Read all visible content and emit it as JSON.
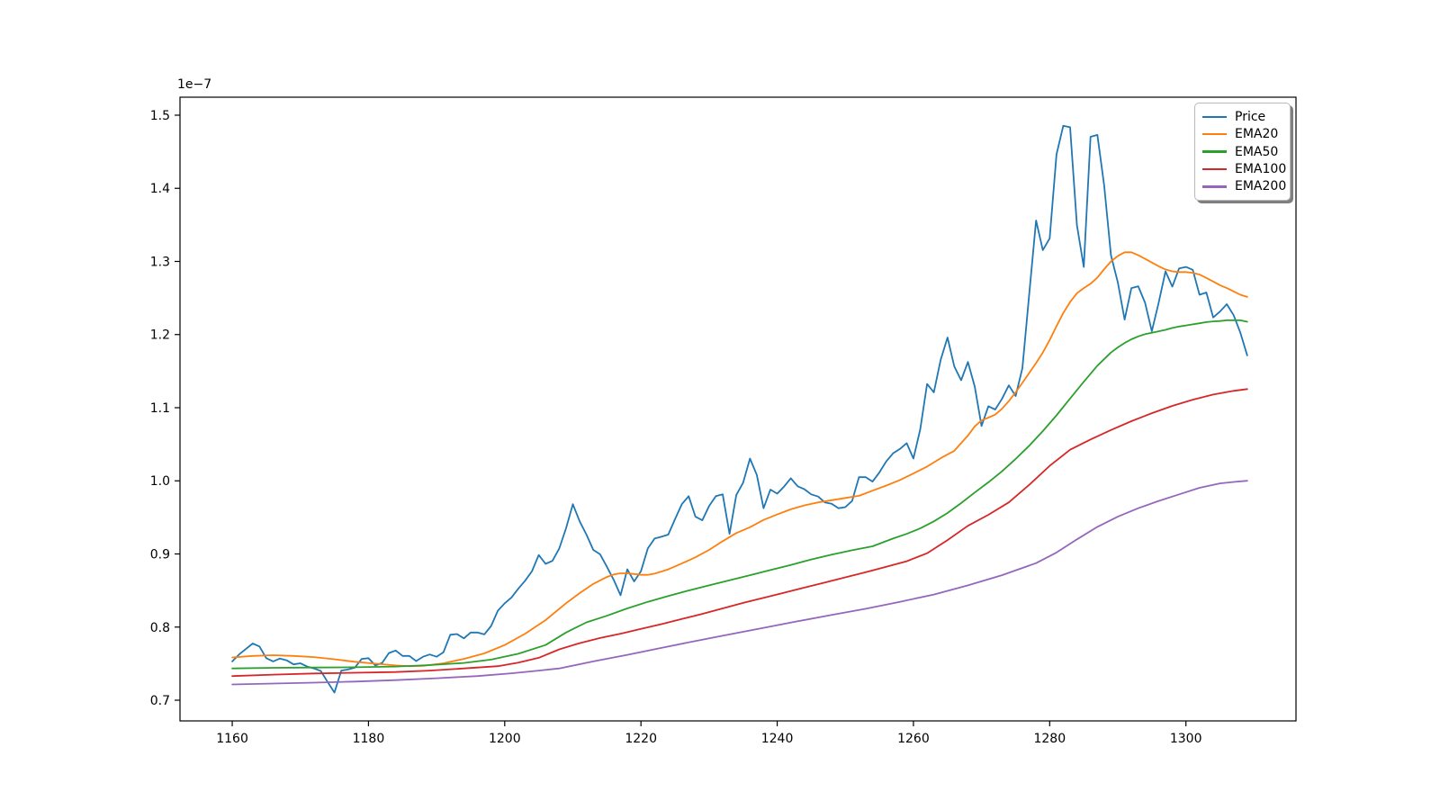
{
  "figure": {
    "background": "#ffffff",
    "spine_color": "#000000",
    "tick_color": "#000000"
  },
  "chart_data": {
    "type": "line",
    "title": "",
    "xlabel": "",
    "ylabel": "",
    "offset_text": "1e−7",
    "grid": false,
    "x_axis": {
      "range": [
        1152.33,
        1316.16
      ],
      "ticks": [
        1160,
        1180,
        1200,
        1220,
        1240,
        1260,
        1280,
        1300
      ],
      "tick_labels": [
        "1160",
        "1180",
        "1200",
        "1220",
        "1240",
        "1260",
        "1280",
        "1300"
      ]
    },
    "y_axis": {
      "range": [
        0.6717,
        1.5246
      ],
      "ticks": [
        0.7,
        0.8,
        0.9,
        1.0,
        1.1,
        1.2,
        1.3,
        1.4,
        1.5
      ],
      "tick_labels": [
        "0.7",
        "0.8",
        "0.9",
        "1.0",
        "1.1",
        "1.2",
        "1.3",
        "1.4",
        "1.5"
      ],
      "scale_note": "all values ×1e−7"
    },
    "legend": {
      "position": "upper right",
      "entries": [
        "Price",
        "EMA20",
        "EMA50",
        "EMA100",
        "EMA200"
      ]
    },
    "series": [
      {
        "name": "Price",
        "color": "#1f77b4",
        "x_start": 1160,
        "x_step": 1,
        "values": [
          0.753,
          0.7625,
          0.77,
          0.7775,
          0.7735,
          0.7575,
          0.753,
          0.757,
          0.7545,
          0.749,
          0.7505,
          0.746,
          0.7435,
          0.74,
          0.725,
          0.7105,
          0.7405,
          0.742,
          0.7445,
          0.7565,
          0.7575,
          0.7475,
          0.751,
          0.7645,
          0.768,
          0.7605,
          0.7605,
          0.7535,
          0.7595,
          0.7625,
          0.7595,
          0.7655,
          0.7895,
          0.7905,
          0.7845,
          0.7925,
          0.7925,
          0.79,
          0.8015,
          0.8225,
          0.8325,
          0.8405,
          0.8525,
          0.8635,
          0.8765,
          0.8985,
          0.8865,
          0.8905,
          0.9075,
          0.935,
          0.968,
          0.9445,
          0.9265,
          0.9055,
          0.8995,
          0.8825,
          0.8645,
          0.8435,
          0.879,
          0.8625,
          0.8765,
          0.9075,
          0.921,
          0.9235,
          0.9265,
          0.9475,
          0.968,
          0.979,
          0.951,
          0.946,
          0.9655,
          0.979,
          0.9815,
          0.9275,
          0.9805,
          0.9975,
          1.0305,
          1.008,
          0.9625,
          0.988,
          0.9825,
          0.992,
          1.0035,
          0.9925,
          0.9885,
          0.9815,
          0.9785,
          0.9705,
          0.9685,
          0.9625,
          0.964,
          0.9725,
          1.005,
          1.005,
          0.999,
          1.0115,
          1.0265,
          1.0375,
          1.0435,
          1.0515,
          1.0305,
          1.0705,
          1.1325,
          1.121,
          1.1655,
          1.196,
          1.1565,
          1.1375,
          1.1625,
          1.1285,
          1.075,
          1.102,
          1.0975,
          1.112,
          1.1305,
          1.116,
          1.154,
          1.2555,
          1.356,
          1.3155,
          1.3315,
          1.4465,
          1.4855,
          1.4835,
          1.3495,
          1.2925,
          1.4705,
          1.473,
          1.4035,
          1.3085,
          1.2715,
          1.2205,
          1.2635,
          1.266,
          1.2435,
          1.2045,
          1.2435,
          1.2865,
          1.2655,
          1.2905,
          1.2925,
          1.2885,
          1.2545,
          1.2575,
          1.2235,
          1.2315,
          1.2415,
          1.2265,
          1.2025,
          1.1715
        ]
      },
      {
        "name": "EMA20",
        "color": "#ff7f0e",
        "points": [
          [
            1160,
            0.7585
          ],
          [
            1163,
            0.7605
          ],
          [
            1166,
            0.7615
          ],
          [
            1169,
            0.7605
          ],
          [
            1172,
            0.759
          ],
          [
            1175,
            0.756
          ],
          [
            1178,
            0.7525
          ],
          [
            1181,
            0.75
          ],
          [
            1184,
            0.7475
          ],
          [
            1186,
            0.7465
          ],
          [
            1188,
            0.747
          ],
          [
            1191,
            0.7505
          ],
          [
            1194,
            0.7565
          ],
          [
            1197,
            0.764
          ],
          [
            1200,
            0.7755
          ],
          [
            1203,
            0.791
          ],
          [
            1206,
            0.8095
          ],
          [
            1209,
            0.8325
          ],
          [
            1211,
            0.8465
          ],
          [
            1213,
            0.859
          ],
          [
            1215,
            0.8685
          ],
          [
            1216,
            0.872
          ],
          [
            1217,
            0.8735
          ],
          [
            1218,
            0.8735
          ],
          [
            1219,
            0.8725
          ],
          [
            1220,
            0.8715
          ],
          [
            1221,
            0.8715
          ],
          [
            1222,
            0.873
          ],
          [
            1224,
            0.879
          ],
          [
            1226,
            0.887
          ],
          [
            1228,
            0.8955
          ],
          [
            1230,
            0.9055
          ],
          [
            1232,
            0.9175
          ],
          [
            1234,
            0.9285
          ],
          [
            1236,
            0.9365
          ],
          [
            1238,
            0.9465
          ],
          [
            1240,
            0.954
          ],
          [
            1242,
            0.961
          ],
          [
            1244,
            0.9665
          ],
          [
            1246,
            0.9705
          ],
          [
            1248,
            0.9735
          ],
          [
            1250,
            0.9765
          ],
          [
            1252,
            0.9795
          ],
          [
            1254,
            0.9865
          ],
          [
            1256,
            0.9935
          ],
          [
            1258,
            1.001
          ],
          [
            1260,
            1.01
          ],
          [
            1262,
            1.0195
          ],
          [
            1264,
            1.031
          ],
          [
            1266,
            1.041
          ],
          [
            1268,
            1.062
          ],
          [
            1269,
            1.0745
          ],
          [
            1270,
            1.0825
          ],
          [
            1271,
            1.0865
          ],
          [
            1272,
            1.0905
          ],
          [
            1273,
            1.0985
          ],
          [
            1274,
            1.109
          ],
          [
            1275,
            1.121
          ],
          [
            1276,
            1.134
          ],
          [
            1277,
            1.1475
          ],
          [
            1278,
            1.161
          ],
          [
            1279,
            1.1755
          ],
          [
            1280,
            1.1925
          ],
          [
            1281,
            1.2115
          ],
          [
            1282,
            1.2295
          ],
          [
            1283,
            1.2445
          ],
          [
            1284,
            1.2565
          ],
          [
            1285,
            1.2635
          ],
          [
            1286,
            1.2695
          ],
          [
            1287,
            1.278
          ],
          [
            1288,
            1.2895
          ],
          [
            1289,
            1.3
          ],
          [
            1290,
            1.3075
          ],
          [
            1291,
            1.3125
          ],
          [
            1292,
            1.3125
          ],
          [
            1293,
            1.3085
          ],
          [
            1294,
            1.3035
          ],
          [
            1295,
            1.2985
          ],
          [
            1296,
            1.2935
          ],
          [
            1297,
            1.289
          ],
          [
            1298,
            1.2865
          ],
          [
            1299,
            1.2855
          ],
          [
            1300,
            1.2855
          ],
          [
            1301,
            1.2845
          ],
          [
            1302,
            1.282
          ],
          [
            1303,
            1.2775
          ],
          [
            1304,
            1.2725
          ],
          [
            1305,
            1.2675
          ],
          [
            1306,
            1.2635
          ],
          [
            1307,
            1.259
          ],
          [
            1308,
            1.2545
          ],
          [
            1309,
            1.2515
          ]
        ]
      },
      {
        "name": "EMA50",
        "color": "#2ca02c",
        "points": [
          [
            1160,
            0.7435
          ],
          [
            1166,
            0.7443
          ],
          [
            1172,
            0.7447
          ],
          [
            1178,
            0.745
          ],
          [
            1184,
            0.746
          ],
          [
            1189,
            0.748
          ],
          [
            1194,
            0.751
          ],
          [
            1198,
            0.7555
          ],
          [
            1202,
            0.7635
          ],
          [
            1206,
            0.7755
          ],
          [
            1209,
            0.7925
          ],
          [
            1212,
            0.8065
          ],
          [
            1215,
            0.8155
          ],
          [
            1218,
            0.8255
          ],
          [
            1221,
            0.8345
          ],
          [
            1224,
            0.8425
          ],
          [
            1227,
            0.85
          ],
          [
            1230,
            0.857
          ],
          [
            1233,
            0.864
          ],
          [
            1236,
            0.871
          ],
          [
            1239,
            0.878
          ],
          [
            1242,
            0.885
          ],
          [
            1245,
            0.8925
          ],
          [
            1248,
            0.899
          ],
          [
            1251,
            0.905
          ],
          [
            1254,
            0.9105
          ],
          [
            1257,
            0.921
          ],
          [
            1259,
            0.9275
          ],
          [
            1261,
            0.935
          ],
          [
            1263,
            0.9445
          ],
          [
            1265,
            0.956
          ],
          [
            1267,
            0.9695
          ],
          [
            1269,
            0.984
          ],
          [
            1271,
            0.998
          ],
          [
            1273,
            1.013
          ],
          [
            1275,
            1.03
          ],
          [
            1277,
            1.048
          ],
          [
            1279,
            1.068
          ],
          [
            1281,
            1.0895
          ],
          [
            1283,
            1.1125
          ],
          [
            1285,
            1.1355
          ],
          [
            1287,
            1.1575
          ],
          [
            1289,
            1.1755
          ],
          [
            1290,
            1.1825
          ],
          [
            1291,
            1.1885
          ],
          [
            1292,
            1.1935
          ],
          [
            1293,
            1.1975
          ],
          [
            1294,
            1.2005
          ],
          [
            1295,
            1.2025
          ],
          [
            1296,
            1.2045
          ],
          [
            1297,
            1.2065
          ],
          [
            1298,
            1.209
          ],
          [
            1299,
            1.211
          ],
          [
            1300,
            1.2125
          ],
          [
            1301,
            1.214
          ],
          [
            1302,
            1.2155
          ],
          [
            1303,
            1.217
          ],
          [
            1304,
            1.218
          ],
          [
            1305,
            1.2185
          ],
          [
            1306,
            1.2195
          ],
          [
            1307,
            1.2195
          ],
          [
            1308,
            1.2195
          ],
          [
            1309,
            1.2175
          ]
        ]
      },
      {
        "name": "EMA100",
        "color": "#d62728",
        "points": [
          [
            1160,
            0.733
          ],
          [
            1166,
            0.735
          ],
          [
            1172,
            0.7365
          ],
          [
            1178,
            0.7375
          ],
          [
            1184,
            0.7385
          ],
          [
            1189,
            0.7405
          ],
          [
            1194,
            0.7435
          ],
          [
            1199,
            0.7465
          ],
          [
            1202,
            0.7515
          ],
          [
            1205,
            0.758
          ],
          [
            1208,
            0.7695
          ],
          [
            1211,
            0.778
          ],
          [
            1214,
            0.785
          ],
          [
            1217,
            0.791
          ],
          [
            1220,
            0.7975
          ],
          [
            1223,
            0.804
          ],
          [
            1226,
            0.811
          ],
          [
            1229,
            0.818
          ],
          [
            1232,
            0.8255
          ],
          [
            1235,
            0.833
          ],
          [
            1238,
            0.84
          ],
          [
            1241,
            0.847
          ],
          [
            1244,
            0.854
          ],
          [
            1247,
            0.861
          ],
          [
            1250,
            0.868
          ],
          [
            1253,
            0.875
          ],
          [
            1256,
            0.8825
          ],
          [
            1259,
            0.89
          ],
          [
            1262,
            0.901
          ],
          [
            1265,
            0.919
          ],
          [
            1268,
            0.9385
          ],
          [
            1271,
            0.9535
          ],
          [
            1274,
            0.9705
          ],
          [
            1277,
            0.9945
          ],
          [
            1280,
            1.0205
          ],
          [
            1283,
            1.0425
          ],
          [
            1286,
            1.0565
          ],
          [
            1289,
            1.0695
          ],
          [
            1292,
            1.0815
          ],
          [
            1295,
            1.0925
          ],
          [
            1298,
            1.1025
          ],
          [
            1301,
            1.111
          ],
          [
            1304,
            1.118
          ],
          [
            1307,
            1.123
          ],
          [
            1309,
            1.1255
          ]
        ]
      },
      {
        "name": "EMA200",
        "color": "#9467bd",
        "points": [
          [
            1160,
            0.7215
          ],
          [
            1166,
            0.7228
          ],
          [
            1172,
            0.724
          ],
          [
            1178,
            0.7255
          ],
          [
            1184,
            0.7275
          ],
          [
            1190,
            0.73
          ],
          [
            1196,
            0.733
          ],
          [
            1201,
            0.7368
          ],
          [
            1205,
            0.7405
          ],
          [
            1208,
            0.7435
          ],
          [
            1213,
            0.753
          ],
          [
            1218,
            0.762
          ],
          [
            1223,
            0.7715
          ],
          [
            1228,
            0.781
          ],
          [
            1233,
            0.79
          ],
          [
            1238,
            0.799
          ],
          [
            1243,
            0.808
          ],
          [
            1248,
            0.8165
          ],
          [
            1253,
            0.825
          ],
          [
            1258,
            0.8345
          ],
          [
            1263,
            0.8445
          ],
          [
            1268,
            0.857
          ],
          [
            1273,
            0.871
          ],
          [
            1278,
            0.8875
          ],
          [
            1281,
            0.902
          ],
          [
            1284,
            0.92
          ],
          [
            1287,
            0.937
          ],
          [
            1290,
            0.951
          ],
          [
            1293,
            0.9625
          ],
          [
            1296,
            0.9725
          ],
          [
            1299,
            0.9815
          ],
          [
            1302,
            0.9905
          ],
          [
            1305,
            0.9965
          ],
          [
            1307,
            0.9985
          ],
          [
            1309,
            1.0
          ]
        ]
      }
    ]
  }
}
